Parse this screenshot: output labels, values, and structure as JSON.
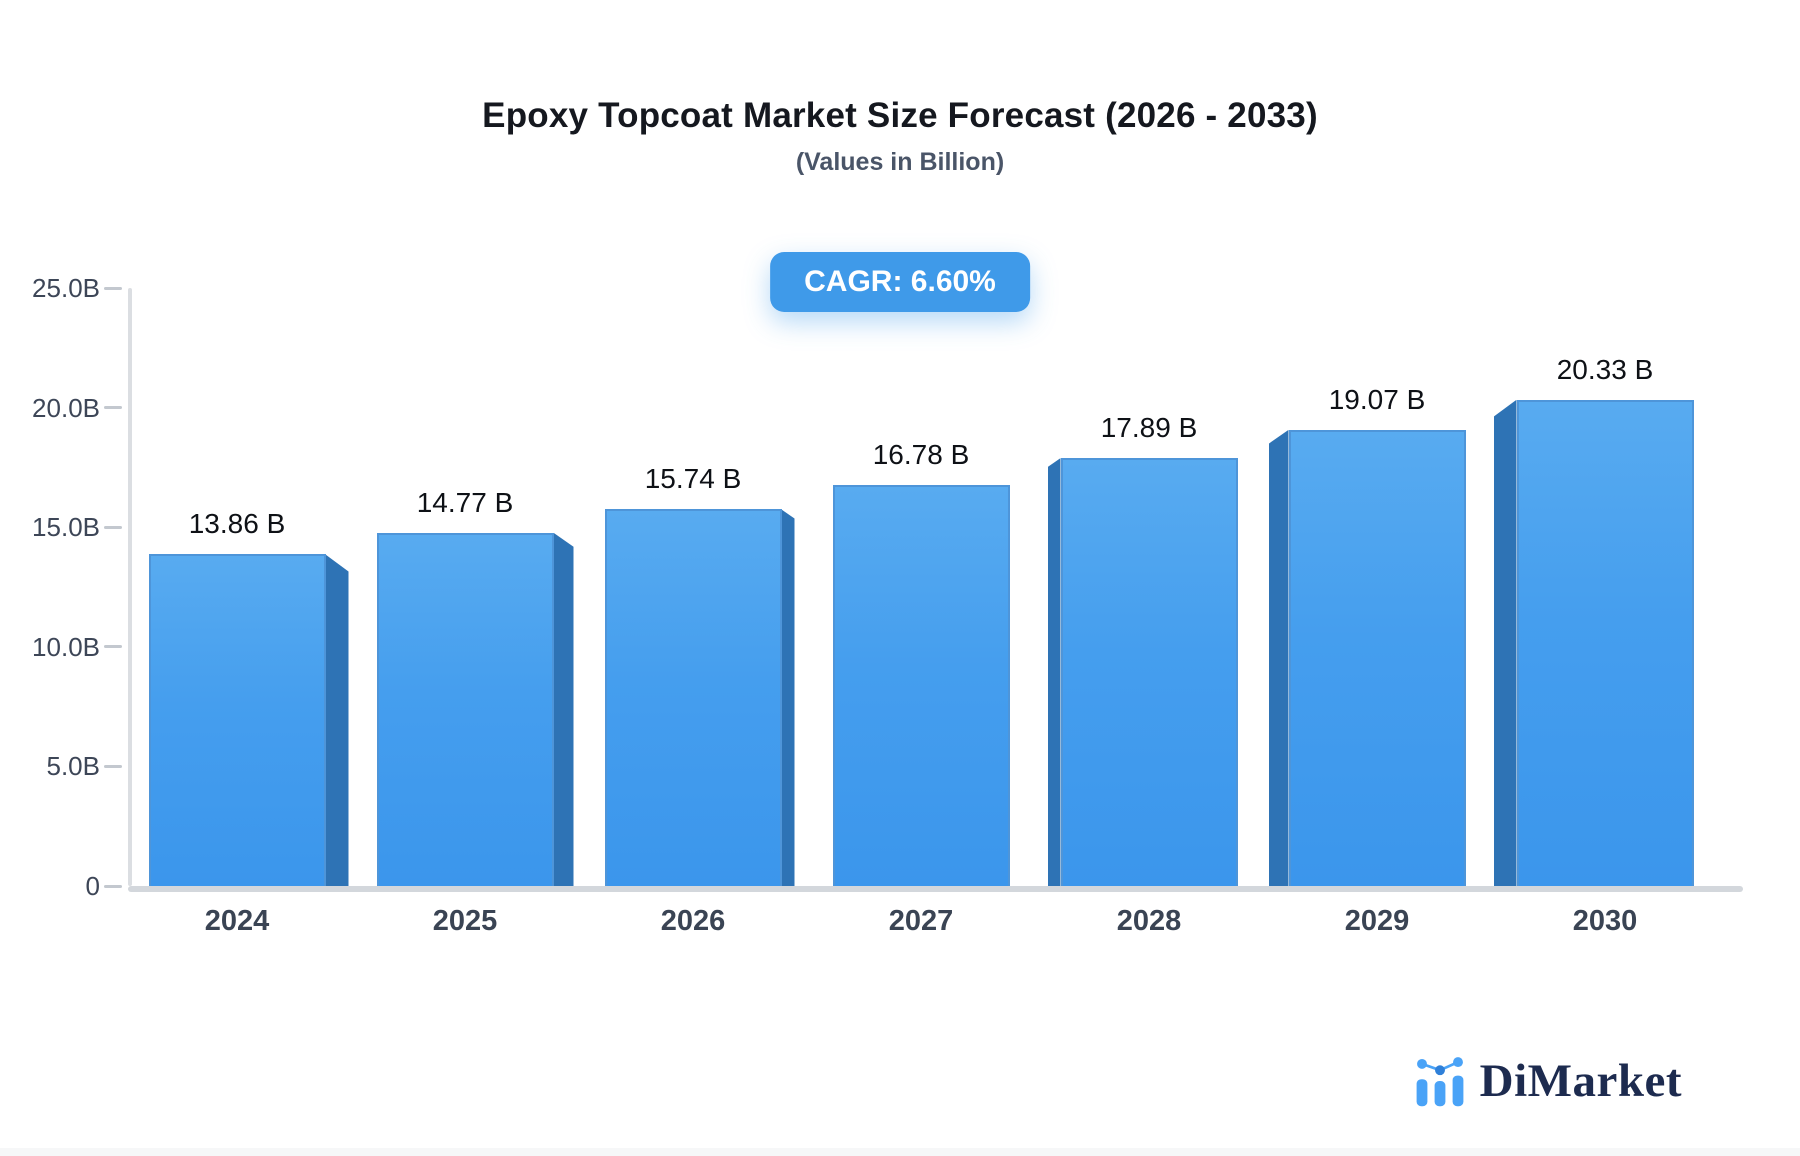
{
  "header": {
    "title": "Epoxy Topcoat Market Size Forecast (2026 - 2033)",
    "subtitle": "(Values in Billion)"
  },
  "badge": {
    "label": "CAGR: 6.60%"
  },
  "chart_data": {
    "type": "bar",
    "title": "Epoxy Topcoat Market Size Forecast (2026 - 2033)",
    "subtitle": "(Values in Billion)",
    "categories": [
      "2024",
      "2025",
      "2026",
      "2027",
      "2028",
      "2029",
      "2030"
    ],
    "values": [
      13.86,
      14.77,
      15.74,
      16.78,
      17.89,
      19.07,
      20.33
    ],
    "value_labels": [
      "13.86 B",
      "14.77 B",
      "15.74 B",
      "16.78 B",
      "17.89 B",
      "19.07 B",
      "20.33 B"
    ],
    "xlabel": "",
    "ylabel": "",
    "ylim": [
      0,
      25
    ],
    "yticks": [
      {
        "label": "25.0B",
        "value": 25
      },
      {
        "label": "20.0B",
        "value": 20
      },
      {
        "label": "15.0B",
        "value": 15
      },
      {
        "label": "10.0B",
        "value": 10
      },
      {
        "label": "5.0B",
        "value": 5
      },
      {
        "label": "0",
        "value": 0
      }
    ],
    "grid": false,
    "legend": false,
    "cagr": "CAGR: 6.60%",
    "bar_color_top": "#58abf0",
    "bar_color_bottom": "#3b96ec",
    "bar_side_color": "#2e73b5"
  },
  "logo": {
    "text": "DiMarket",
    "icon": "mini-bar-chart-icon",
    "icon_color": "#4aa3f7",
    "text_color": "#1d2b4f"
  },
  "colors": {
    "badge_bg": "#3f9ae9",
    "axis": "#dbdee2",
    "baseline": "#d3d7dc",
    "tick_text": "#3d4657",
    "value_text": "#0e1116",
    "title_text": "#15181f",
    "subtitle_text": "#4a5568"
  }
}
